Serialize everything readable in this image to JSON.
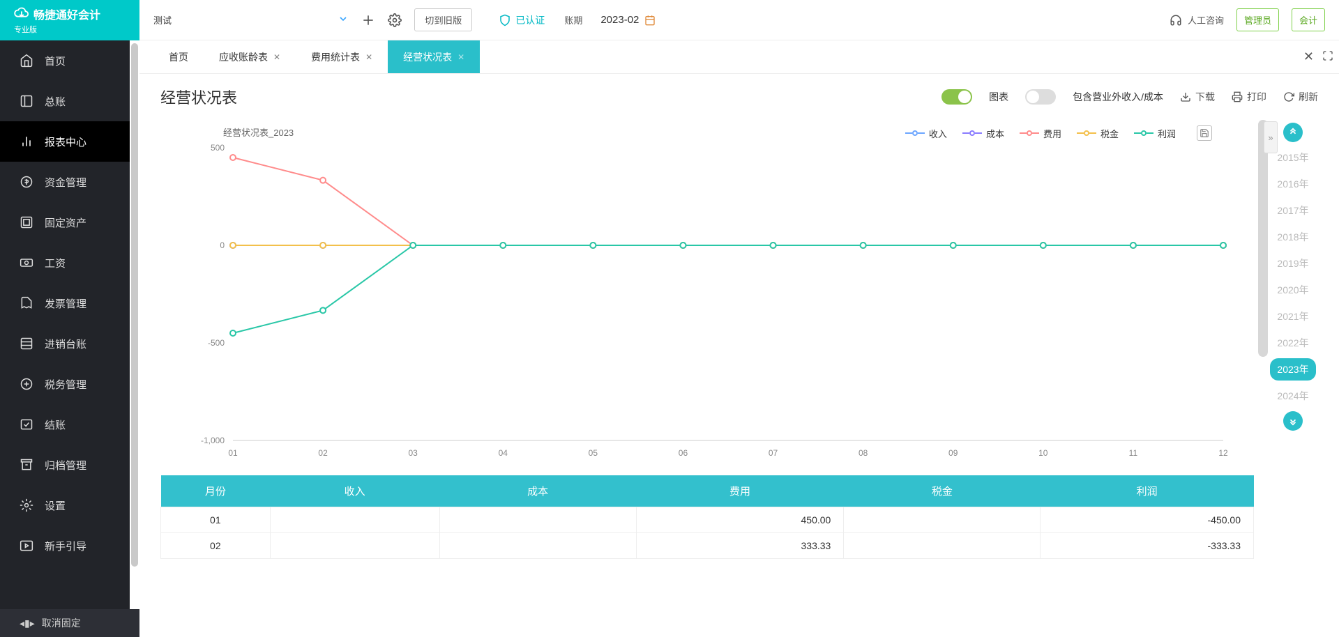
{
  "brand": {
    "name": "畅捷通好会计",
    "edition": "专业版"
  },
  "sidebar": {
    "items": [
      {
        "label": "首页",
        "icon": "home"
      },
      {
        "label": "总账",
        "icon": "ledger"
      },
      {
        "label": "报表中心",
        "icon": "report",
        "active": true
      },
      {
        "label": "资金管理",
        "icon": "fund"
      },
      {
        "label": "固定资产",
        "icon": "asset"
      },
      {
        "label": "工资",
        "icon": "salary"
      },
      {
        "label": "发票管理",
        "icon": "invoice"
      },
      {
        "label": "进销台账",
        "icon": "stock"
      },
      {
        "label": "税务管理",
        "icon": "tax"
      },
      {
        "label": "结账",
        "icon": "close"
      },
      {
        "label": "归档管理",
        "icon": "archive"
      },
      {
        "label": "设置",
        "icon": "settings"
      },
      {
        "label": "新手引导",
        "icon": "guide"
      }
    ],
    "pin_label": "取消固定"
  },
  "topbar": {
    "account_name": "测试",
    "switch_old_label": "切到旧版",
    "verified_label": "已认证",
    "period_label": "账期",
    "period_value": "2023-02",
    "consult_label": "人工咨询",
    "role_admin": "管理员",
    "role_acc": "会计"
  },
  "tabs": [
    {
      "label": "首页",
      "closable": false
    },
    {
      "label": "应收账龄表",
      "closable": true
    },
    {
      "label": "费用统计表",
      "closable": true
    },
    {
      "label": "经营状况表",
      "closable": true,
      "active": true
    }
  ],
  "page": {
    "title": "经营状况表",
    "toggle_chart_label": "图表",
    "toggle_extra_label": "包含营业外收入/成本",
    "download_label": "下载",
    "print_label": "打印",
    "refresh_label": "刷新"
  },
  "chart": {
    "title": "经营状况表_2023",
    "type": "line",
    "x_categories": [
      "01",
      "02",
      "03",
      "04",
      "05",
      "06",
      "07",
      "08",
      "09",
      "10",
      "11",
      "12"
    ],
    "y_ticks": [
      -1000,
      -500,
      0,
      500
    ],
    "ylim": [
      -1000,
      500
    ],
    "series": [
      {
        "name": "收入",
        "color": "#6ca6ff",
        "values": [
          0,
          0,
          0,
          0,
          0,
          0,
          0,
          0,
          0,
          0,
          0,
          0
        ]
      },
      {
        "name": "成本",
        "color": "#8a7cff",
        "values": [
          0,
          0,
          0,
          0,
          0,
          0,
          0,
          0,
          0,
          0,
          0,
          0
        ]
      },
      {
        "name": "费用",
        "color": "#ff8b8b",
        "values": [
          450,
          333.33,
          0,
          0,
          0,
          0,
          0,
          0,
          0,
          0,
          0,
          0
        ]
      },
      {
        "name": "税金",
        "color": "#f3c04b",
        "values": [
          0,
          0,
          0,
          0,
          0,
          0,
          0,
          0,
          0,
          0,
          0,
          0
        ]
      },
      {
        "name": "利润",
        "color": "#29c7a7",
        "values": [
          -450,
          -333.33,
          0,
          0,
          0,
          0,
          0,
          0,
          0,
          0,
          0,
          0
        ]
      }
    ],
    "background_color": "#ffffff",
    "axis_color": "#cccccc",
    "label_color": "#888888",
    "tick_fontsize": 12,
    "marker_radius": 4,
    "line_width": 2
  },
  "table": {
    "columns": [
      "月份",
      "收入",
      "成本",
      "费用",
      "税金",
      "利润"
    ],
    "col_widths_pct": [
      10,
      15.5,
      18,
      19,
      18,
      19.5
    ],
    "rows": [
      [
        "01",
        "",
        "",
        "450.00",
        "",
        "-450.00"
      ],
      [
        "02",
        "",
        "",
        "333.33",
        "",
        "-333.33"
      ]
    ]
  },
  "years": {
    "list": [
      "2015年",
      "2016年",
      "2017年",
      "2018年",
      "2019年",
      "2020年",
      "2021年",
      "2022年",
      "2023年",
      "2024年"
    ],
    "active_index": 8
  }
}
